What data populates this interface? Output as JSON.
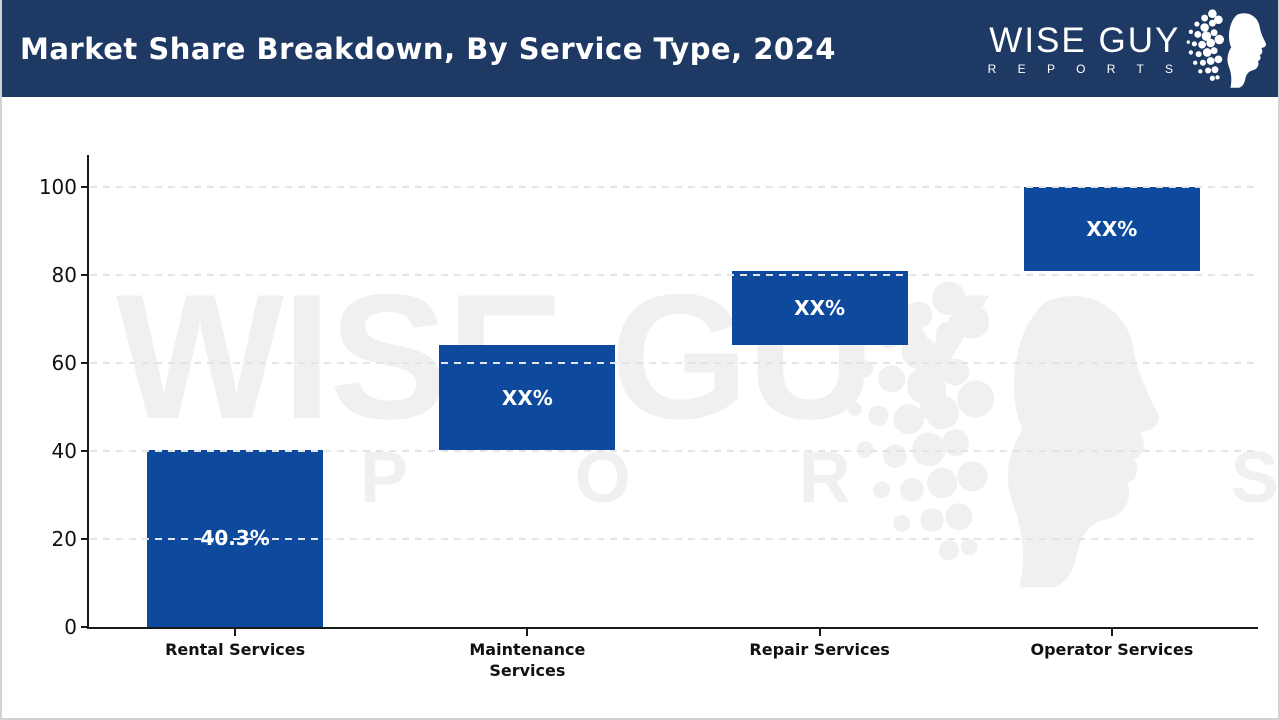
{
  "header": {
    "title": "Market Share Breakdown, By Service Type, 2024",
    "logo": {
      "line1": "WISE GUY",
      "line2": "R E P O R T S"
    }
  },
  "watermark": {
    "line1": "WISE GUY",
    "line2": "P O R T S"
  },
  "chart_data": {
    "type": "bar",
    "subtype": "waterfall",
    "title": "Market Share Breakdown, By Service Type, 2024",
    "categories": [
      "Rental Services",
      "Maintenance\nServices",
      "Repair Services",
      "Operator Services"
    ],
    "segments": [
      {
        "category": "Rental Services",
        "start": 0,
        "end": 40.3,
        "label": "40.3%"
      },
      {
        "category": "Maintenance Services",
        "start": 40.3,
        "end": 64,
        "label": "XX%"
      },
      {
        "category": "Repair Services",
        "start": 64,
        "end": 80.8,
        "label": "XX%"
      },
      {
        "category": "Operator Services",
        "start": 80.8,
        "end": 100,
        "label": "XX%"
      }
    ],
    "yticks": [
      0,
      20,
      40,
      60,
      80,
      100
    ],
    "ylim": [
      0,
      100
    ],
    "grid": "dashed-horizontal",
    "legend": "none",
    "bar_color": "#0d4a9e",
    "bar_label_color": "#ffffff"
  },
  "colors": {
    "header_bg": "#1e3a64",
    "bar": "#0d4a9e",
    "grid": "#e4e4e7",
    "axis": "#1a1a1a",
    "watermark": "#f0f0f2",
    "frame_border": "#d2d2d2"
  }
}
